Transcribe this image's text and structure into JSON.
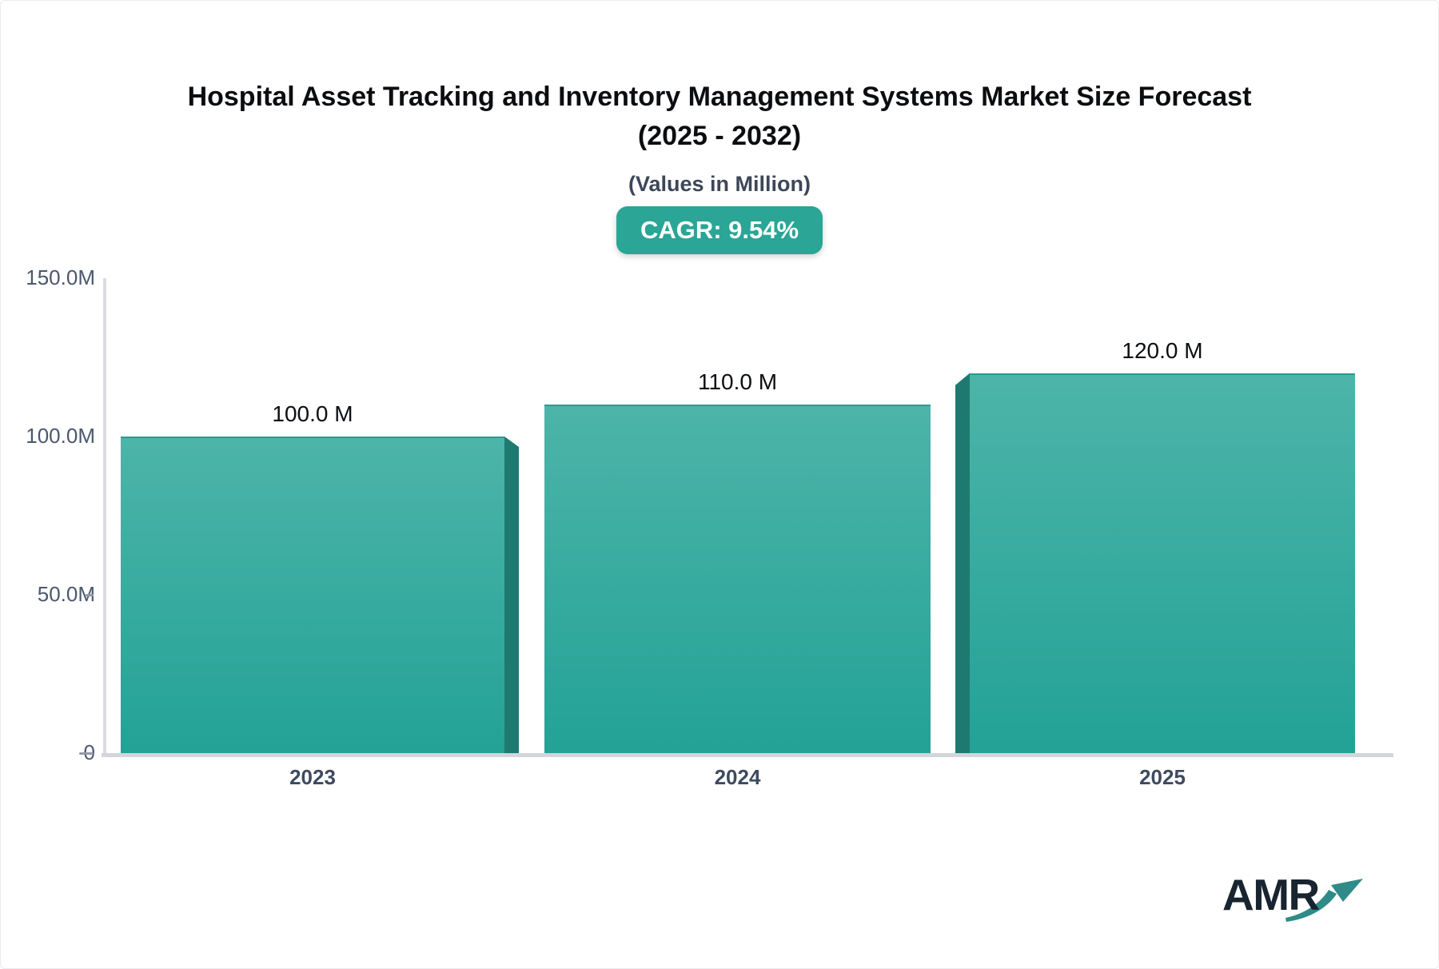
{
  "header": {
    "title_line1": "Hospital Asset Tracking and Inventory Management Systems Market Size Forecast",
    "title_line2": "(2025 - 2032)",
    "subtitle": "(Values in Million)",
    "cagr_badge": "CAGR: 9.54%"
  },
  "chart_data": {
    "type": "bar",
    "title": "Hospital Asset Tracking and Inventory Management Systems Market Size Forecast (2025 - 2032)",
    "subtitle": "(Values in Million)",
    "unit": "Million",
    "categories": [
      "2023",
      "2024",
      "2025"
    ],
    "values": [
      100.0,
      110.0,
      120.0
    ],
    "value_labels": [
      "100.0 M",
      "110.0 M",
      "120.0 M"
    ],
    "ylim": [
      0,
      150
    ],
    "yticks": [
      {
        "value": 0,
        "label": "0",
        "dash": true
      },
      {
        "value": 50,
        "label": "50.0M",
        "dash": true
      },
      {
        "value": 100,
        "label": "100.0M",
        "dash": false
      },
      {
        "value": 150,
        "label": "150.0M",
        "dash": false
      }
    ],
    "grid": false,
    "legend": false,
    "colors": {
      "bar_top": "#4db4a9",
      "bar_bottom": "#23a296",
      "bar_side": "#1e7a70",
      "badge_bg": "#2aa596"
    }
  },
  "footer": {
    "logo_text": "AMR"
  }
}
